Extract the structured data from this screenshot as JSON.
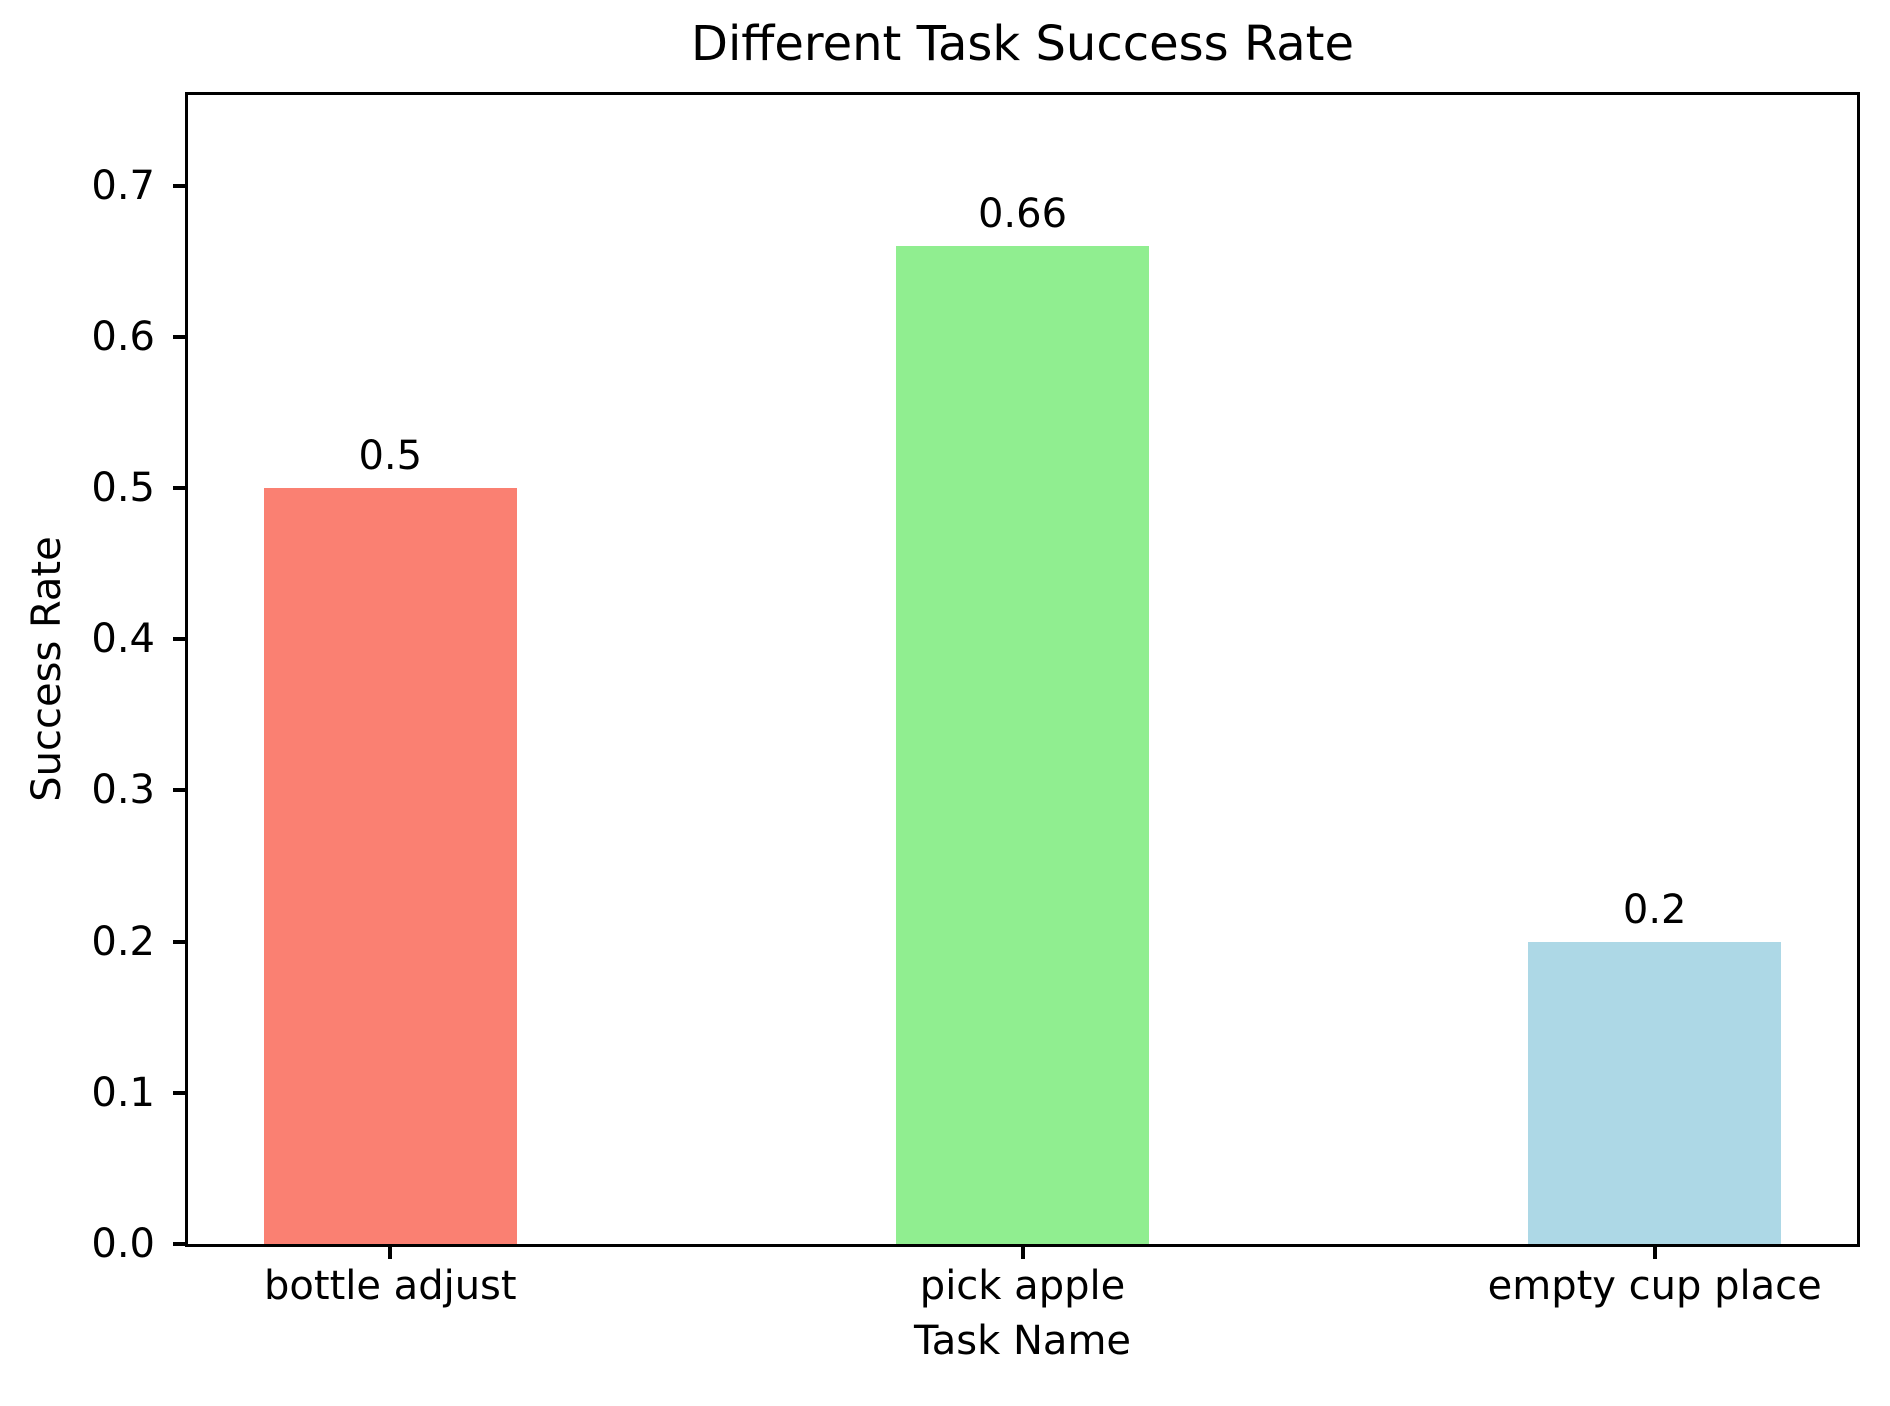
{
  "figure": {
    "background": "#ffffff"
  },
  "chart_data": {
    "type": "bar",
    "title": "Different Task Success Rate",
    "xlabel": "Task Name",
    "ylabel": "Success Rate",
    "categories": [
      "bottle adjust",
      "pick apple",
      "empty cup place"
    ],
    "values": [
      0.5,
      0.66,
      0.2
    ],
    "value_labels": [
      "0.5",
      "0.66",
      "0.2"
    ],
    "bar_colors": [
      "#FA8072",
      "#90EE90",
      "#ADD8E6"
    ],
    "yticks": [
      "0.0",
      "0.1",
      "0.2",
      "0.3",
      "0.4",
      "0.5",
      "0.6",
      "0.7"
    ],
    "ylim": [
      0,
      0.76
    ],
    "xlim": [
      -0.32,
      2.32
    ],
    "bar_width": 0.4,
    "grid": false,
    "legend": "none",
    "text_color": "#000000",
    "spine_color": "#000000"
  }
}
